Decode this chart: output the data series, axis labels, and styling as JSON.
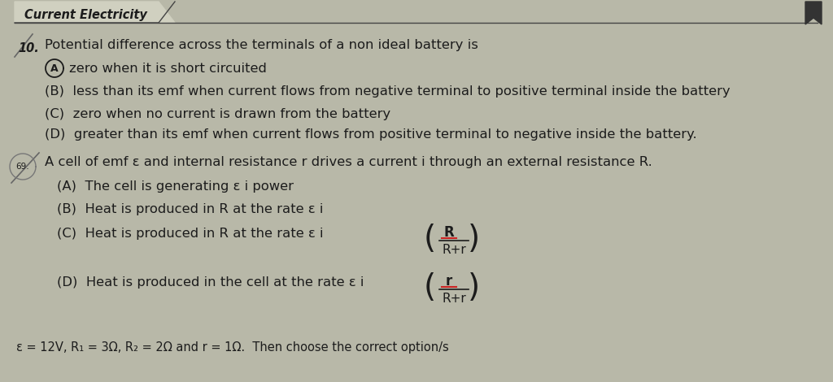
{
  "background_color": "#b8b8a8",
  "title_tab_text": "Current Electricity",
  "q1_number": "10.",
  "q1_text": "Potential difference across the terminals of a non ideal battery is",
  "q1_A_text": "zero when it is short circuited",
  "q1_B_text": "less than its emf when current flows from negative terminal to positive terminal inside the battery",
  "q1_C_text": "zero when no current is drawn from the battery",
  "q1_D_text": "greater than its emf when current flows from positive terminal to negative inside the battery.",
  "q2_text": "A cell of emf ε and internal resistance r drives a current i through an external resistance R.",
  "q2_A_text": "The cell is generating ε i power",
  "q2_B_text": "Heat is produced in R at the rate ε i",
  "q2_C_prefix": "Heat is produced in R at the rate ε i",
  "q2_C_frac_num": "R",
  "q2_C_frac_den": "R+r",
  "q2_D_prefix": "Heat is produced in the cell at the rate ε i",
  "q2_D_frac_num": "r",
  "q2_D_frac_den": "R+r",
  "bottom_text": "ε = 12V, R₁ = 3Ω, R₂ = 2Ω and r = 1Ω.  Then choose the correct option/s",
  "text_color": "#1c1c1c",
  "tab_bg": "#d0d0c0",
  "tab_line_color": "#444444",
  "frac_box_color": "#cc2222",
  "frac_underline_color": "#cc2222",
  "bookmark_color": "#333333",
  "q_marker_color": "#555555",
  "font_size": 11.8,
  "font_size_small": 10.5,
  "font_size_tab": 10.5
}
